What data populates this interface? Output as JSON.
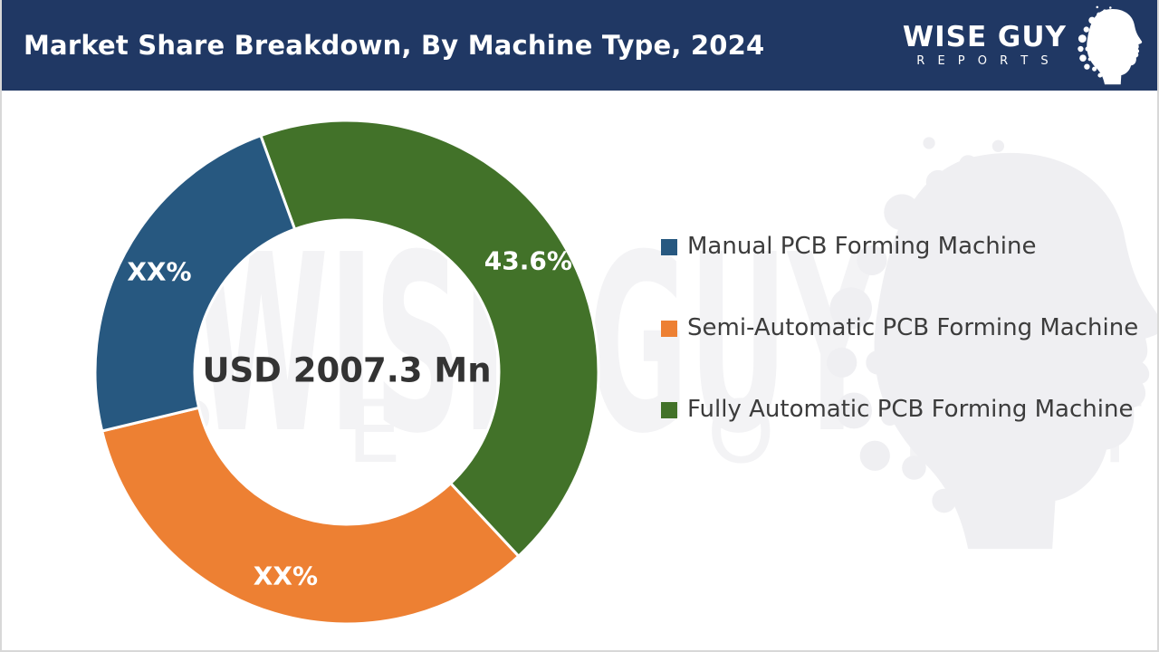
{
  "header": {
    "title": "Market Share Breakdown, By Machine Type, 2024",
    "bg_color": "#203864",
    "logo": {
      "line1": "WISE GUY",
      "line2": "R E P O R T S"
    }
  },
  "watermark": {
    "line1": "WISE GUY",
    "line2": "R E P O R T S"
  },
  "chart_data": {
    "type": "pie",
    "subtype": "donut",
    "title": "Market Share Breakdown, By Machine Type, 2024",
    "center_label": "USD 2007.3 Mn",
    "start_angle_deg": -20,
    "direction": "clockwise",
    "units": "percent of market share",
    "segments": [
      {
        "name": "Fully Automatic PCB Forming Machine",
        "value": 43.6,
        "label": "43.6%",
        "color": "#427229"
      },
      {
        "name": "Semi-Automatic PCB Forming Machine",
        "value": 33.2,
        "label": "XX%",
        "color": "#ED8033"
      },
      {
        "name": "Manual PCB Forming Machine",
        "value": 23.2,
        "label": "XX%",
        "color": "#275880"
      }
    ],
    "legend_position": "right",
    "legend": [
      {
        "label": "Manual PCB Forming Machine",
        "color": "#275880"
      },
      {
        "label": "Semi-Automatic PCB Forming Machine",
        "color": "#ED8033"
      },
      {
        "label": "Fully Automatic PCB Forming Machine",
        "color": "#427229"
      }
    ]
  }
}
